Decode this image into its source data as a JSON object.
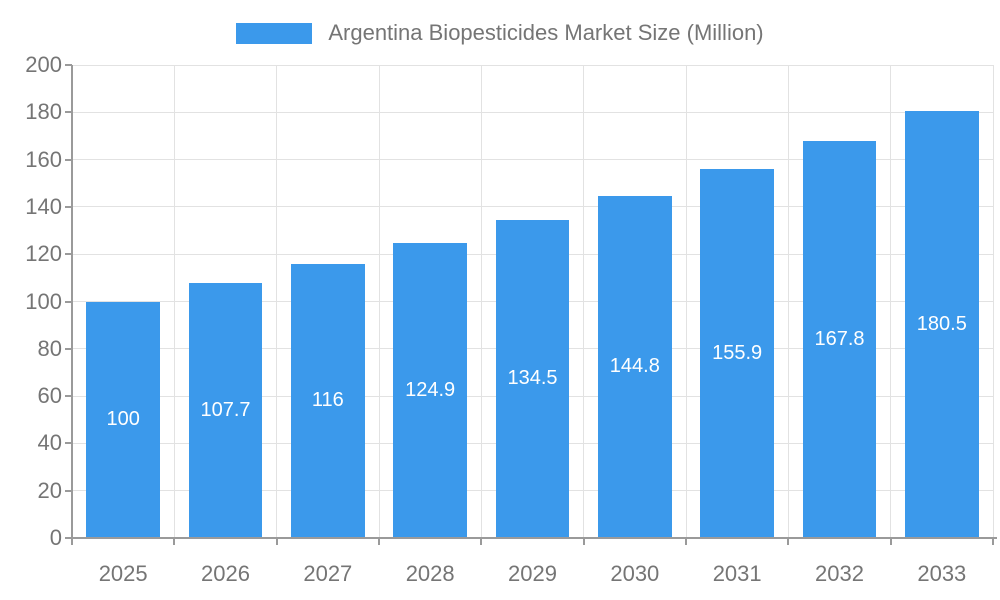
{
  "chart_data": {
    "type": "bar",
    "title": "Argentina Biopesticides Market Size (Million)",
    "categories": [
      "2025",
      "2026",
      "2027",
      "2028",
      "2029",
      "2030",
      "2031",
      "2032",
      "2033"
    ],
    "values": [
      100,
      107.7,
      116,
      124.9,
      134.5,
      144.8,
      155.9,
      167.8,
      180.5
    ],
    "value_labels": [
      "100",
      "107.7",
      "116",
      "124.9",
      "134.5",
      "144.8",
      "155.9",
      "167.8",
      "180.5"
    ],
    "xlabel": "",
    "ylabel": "",
    "ylim": [
      0,
      200
    ],
    "y_ticks": [
      0,
      20,
      40,
      60,
      80,
      100,
      120,
      140,
      160,
      180,
      200
    ],
    "grid": true,
    "legend_position": "top",
    "colors": {
      "bar": "#3B99EB",
      "value_label": "#FFFFFF",
      "axis_label": "#757575",
      "legend_label": "#757575",
      "gridline": "#E2E2E2",
      "axis_line": "#9A9A9A",
      "background": "#FFFFFF"
    }
  }
}
